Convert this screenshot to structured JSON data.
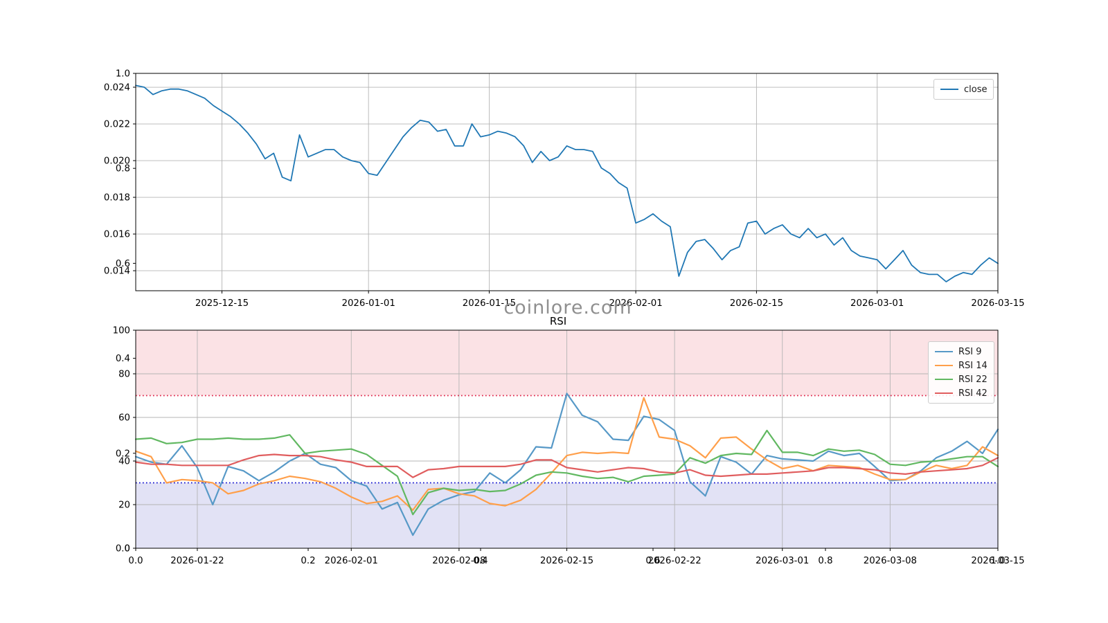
{
  "figure": {
    "watermark": "coinlore.com",
    "background_color": "#ffffff",
    "grid_color": "#b4b4b4",
    "text_color": "#000000"
  },
  "chart_data": [
    {
      "type": "line",
      "title": "",
      "grid": true,
      "legend_position": "upper right",
      "x_frequency": "daily",
      "x_start_date": "2025-12-05",
      "x_end_date": "2026-03-15",
      "x_tick_labels": [
        "2025-12-15",
        "2026-01-01",
        "2026-01-15",
        "2026-02-01",
        "2026-02-15",
        "2026-03-01",
        "2026-03-15"
      ],
      "y_ticks": [
        {
          "value": 0.024,
          "label": "0.024"
        },
        {
          "value": 0.022,
          "label": "0.022"
        },
        {
          "value": 0.02,
          "label": "0.020"
        },
        {
          "value": 0.018,
          "label": "0.018"
        },
        {
          "value": 0.016,
          "label": "0.016"
        },
        {
          "value": 0.014,
          "label": "0.014"
        }
      ],
      "ylim": [
        0.012909,
        0.024755
      ],
      "series": [
        {
          "name": "close",
          "color": "#1f77b4",
          "line_width": 1.8,
          "values": [
            0.0241,
            0.024,
            0.0236,
            0.0238,
            0.0239,
            0.0239,
            0.0238,
            0.0236,
            0.0234,
            0.023,
            0.0227,
            0.0224,
            0.022,
            0.0215,
            0.0209,
            0.0201,
            0.0204,
            0.0191,
            0.0189,
            0.0214,
            0.0202,
            0.0204,
            0.0206,
            0.0206,
            0.0202,
            0.02,
            0.0199,
            0.0193,
            0.0192,
            0.0199,
            0.0206,
            0.0213,
            0.0218,
            0.0222,
            0.0221,
            0.0216,
            0.0217,
            0.0208,
            0.0208,
            0.022,
            0.0213,
            0.0214,
            0.0216,
            0.0215,
            0.0213,
            0.0208,
            0.0199,
            0.0205,
            0.02,
            0.0202,
            0.0208,
            0.0206,
            0.0206,
            0.0205,
            0.0196,
            0.0193,
            0.0188,
            0.0185,
            0.0166,
            0.0168,
            0.0171,
            0.0167,
            0.0164,
            0.0137,
            0.015,
            0.0156,
            0.0157,
            0.0152,
            0.0146,
            0.0151,
            0.0153,
            0.0166,
            0.0167,
            0.016,
            0.0163,
            0.0165,
            0.016,
            0.0158,
            0.0163,
            0.0158,
            0.016,
            0.0154,
            0.0158,
            0.0151,
            0.0148,
            0.0147,
            0.0146,
            0.0141,
            0.0146,
            0.0151,
            0.0143,
            0.0139,
            0.0138,
            0.0138,
            0.0134,
            0.0137,
            0.0139,
            0.0138,
            0.0143,
            0.0147,
            0.0144
          ]
        }
      ]
    },
    {
      "type": "line",
      "title": "RSI",
      "grid": true,
      "legend_position": "upper right",
      "x_frequency": "daily",
      "x_start_date": "2026-01-18",
      "x_end_date": "2026-03-15",
      "x_tick_labels": [
        "2026-01-22",
        "2026-02-01",
        "2026-02-08",
        "2026-02-15",
        "2026-02-22",
        "2026-03-01",
        "2026-03-08",
        "2026-03-15"
      ],
      "y_ticks": [
        {
          "value": 100,
          "label": "100"
        },
        {
          "value": 80,
          "label": "80"
        },
        {
          "value": 60,
          "label": "60"
        },
        {
          "value": 40,
          "label": "40"
        },
        {
          "value": 20,
          "label": "20"
        },
        {
          "value": 0,
          "label": "0"
        }
      ],
      "ylim": [
        0,
        100
      ],
      "hlines": [
        {
          "y": 70,
          "color": "#dc143c",
          "style": "dotted",
          "meaning": "overbought threshold"
        },
        {
          "y": 30,
          "color": "#0000cd",
          "style": "dotted",
          "meaning": "oversold threshold"
        }
      ],
      "bands": [
        {
          "from": 70,
          "to": 100,
          "color": "#fbe2e5",
          "meaning": "overbought zone"
        },
        {
          "from": 0,
          "to": 30,
          "color": "#e2e2f5",
          "meaning": "oversold zone"
        }
      ],
      "series": [
        {
          "name": "RSI 9",
          "color": "#5799c7",
          "line_width": 2.2,
          "values": [
            42,
            39.5,
            38.5,
            47,
            37,
            20,
            37.5,
            35.5,
            31,
            35,
            40,
            43.5,
            38.5,
            37,
            31,
            28.5,
            18,
            21,
            6,
            18,
            22,
            24.5,
            26,
            34.5,
            30,
            36,
            46.5,
            46,
            71,
            61,
            58,
            50,
            49.5,
            60.5,
            59,
            54,
            30.5,
            24,
            42,
            39.5,
            34,
            42.5,
            41,
            40.5,
            40,
            44.5,
            42.5,
            43.5,
            37.5,
            31,
            31.5,
            35.5,
            41.5,
            44.5,
            49,
            43.5,
            54.5
          ]
        },
        {
          "name": "RSI 14",
          "color": "#ff9f4a",
          "line_width": 2.2,
          "values": [
            44.5,
            42,
            30,
            31.5,
            31,
            30,
            25,
            26.5,
            29.5,
            31,
            33,
            32,
            30.5,
            27.5,
            23.5,
            20.5,
            21.5,
            24,
            17.5,
            27,
            27.5,
            25,
            24,
            20.5,
            19.5,
            22,
            27,
            34.5,
            42.5,
            44,
            43.5,
            44,
            43.5,
            69,
            51,
            50,
            47,
            41.5,
            50.5,
            51,
            45.5,
            40.5,
            36.5,
            38,
            35.5,
            38,
            37.5,
            37,
            34,
            31.5,
            31.5,
            35,
            38,
            36.5,
            38,
            46.5,
            42.5
          ]
        },
        {
          "name": "RSI 22",
          "color": "#61b861",
          "line_width": 2.2,
          "values": [
            50,
            50.5,
            48,
            48.5,
            50,
            50,
            50.5,
            50,
            50,
            50.5,
            52,
            43.5,
            44.5,
            45,
            45.5,
            43,
            38,
            33,
            15.5,
            25.5,
            27.5,
            26.5,
            27,
            26,
            26.5,
            29.5,
            33.5,
            35,
            34.5,
            33,
            32,
            32.5,
            30.5,
            33,
            33.5,
            34,
            41.5,
            39,
            42.5,
            43.5,
            43,
            54,
            44,
            44,
            42.5,
            45.5,
            44.5,
            45,
            43,
            38.5,
            38,
            39.5,
            40,
            41,
            42,
            42,
            37.5
          ]
        },
        {
          "name": "RSI 42",
          "color": "#e05d5e",
          "line_width": 2.2,
          "values": [
            39.5,
            38.5,
            38.5,
            38,
            38,
            38,
            38,
            40.5,
            42.5,
            43,
            42.5,
            42.5,
            42,
            40.5,
            39.5,
            37.5,
            37.5,
            37.5,
            32.5,
            36,
            36.5,
            37.5,
            37.5,
            37.5,
            37.5,
            38.5,
            40.5,
            40.5,
            37,
            36,
            35,
            36,
            37,
            36.5,
            35,
            34.5,
            36,
            33.5,
            33,
            33.5,
            34,
            34,
            34.5,
            35,
            35.5,
            37,
            37,
            36.5,
            36,
            34.5,
            34,
            35,
            35.5,
            36,
            36.5,
            38,
            41.5
          ]
        }
      ]
    }
  ],
  "overlay_axis": {
    "x_tick_labels": [
      "0.0",
      "0.2",
      "0.4",
      "0.6",
      "0.8",
      "1.0"
    ],
    "y_tick_labels": [
      "1.0",
      "0.8",
      "0.6",
      "0.4",
      "0.2",
      "0.0"
    ]
  }
}
